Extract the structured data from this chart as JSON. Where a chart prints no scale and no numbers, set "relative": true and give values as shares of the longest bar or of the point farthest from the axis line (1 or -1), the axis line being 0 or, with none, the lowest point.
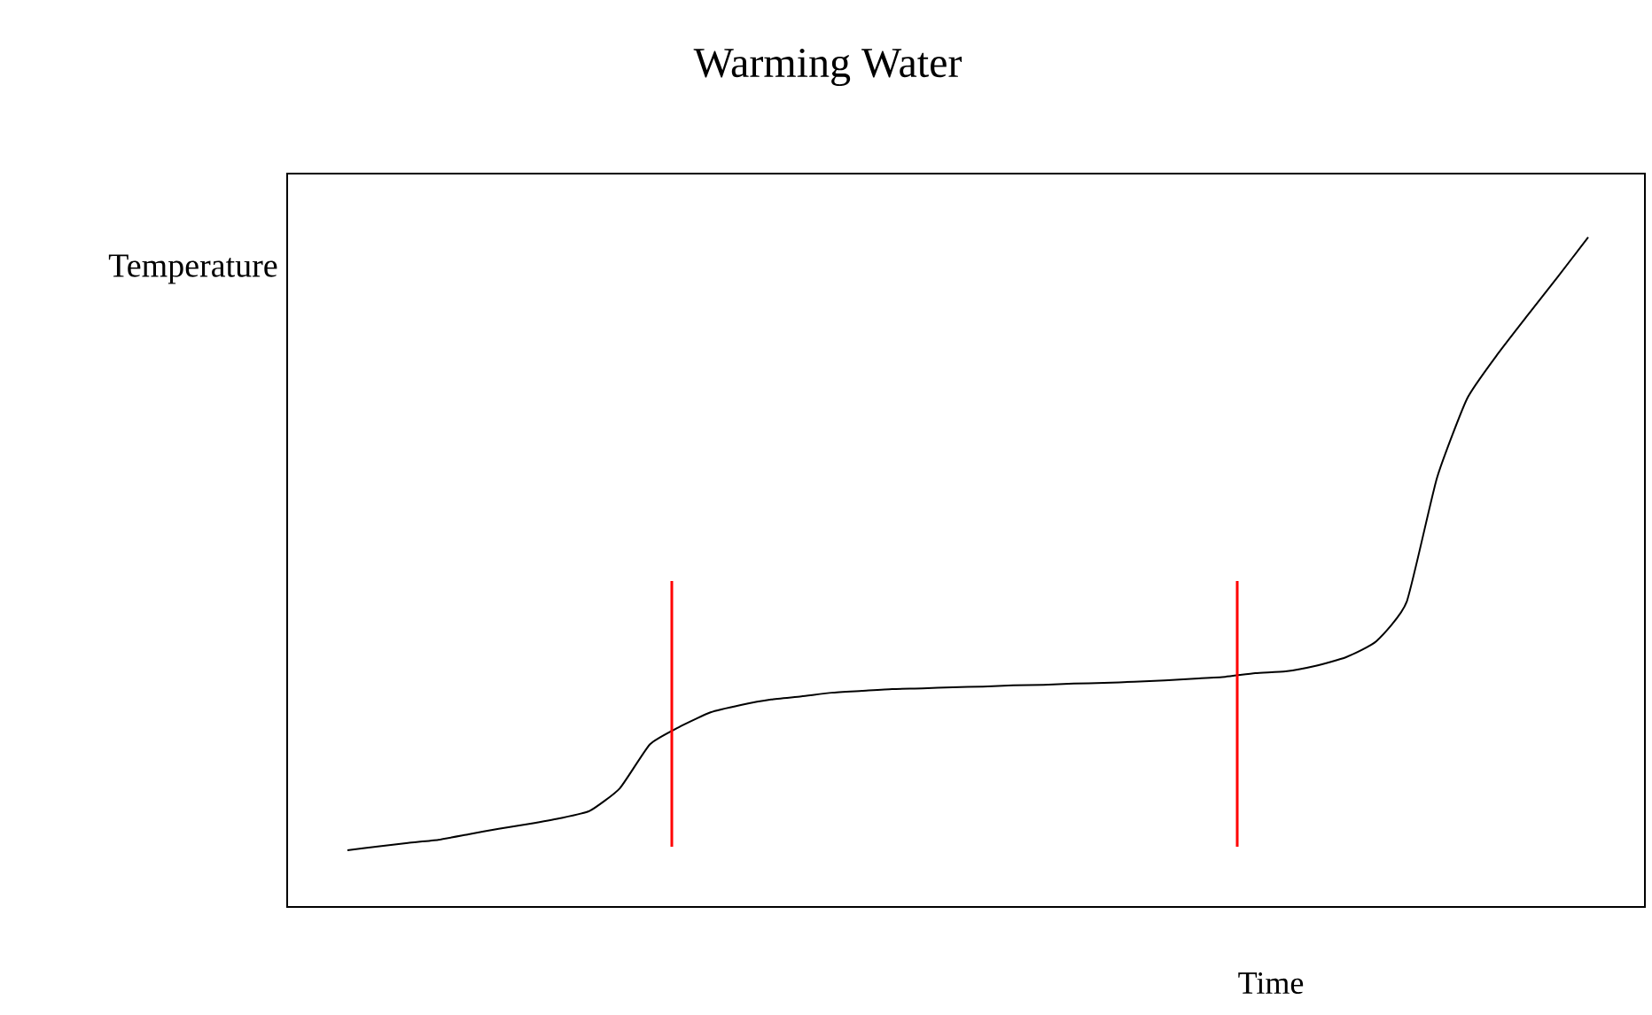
{
  "chart_data": {
    "type": "line",
    "title": "Warming Water",
    "xlabel": "Time",
    "ylabel": "Temperature",
    "relative": true,
    "categories": [
      null,
      null,
      null,
      null,
      null,
      null,
      null,
      null,
      null,
      null,
      null,
      null,
      null,
      null,
      null,
      null,
      null,
      null,
      null,
      null,
      null,
      null,
      null,
      null,
      null,
      null,
      null,
      null,
      null,
      null,
      null,
      null,
      null,
      null,
      null,
      null,
      null,
      null,
      null,
      null,
      null,
      null
    ],
    "series": [
      {
        "color": "#000000",
        "values": [
          0,
          0.006,
          0.012,
          0.017,
          0.026,
          0.035,
          0.043,
          0.052,
          0.064,
          0.101,
          0.173,
          0.202,
          0.225,
          0.237,
          0.246,
          0.251,
          0.257,
          0.26,
          0.263,
          0.264,
          0.266,
          0.267,
          0.269,
          0.27,
          0.272,
          0.273,
          0.275,
          0.277,
          0.28,
          0.283,
          0.289,
          0.292,
          0.301,
          0.315,
          0.341,
          0.405,
          0.607,
          0.737,
          0.809,
          0.873,
          0.936,
          1
        ]
      }
    ]
  }
}
